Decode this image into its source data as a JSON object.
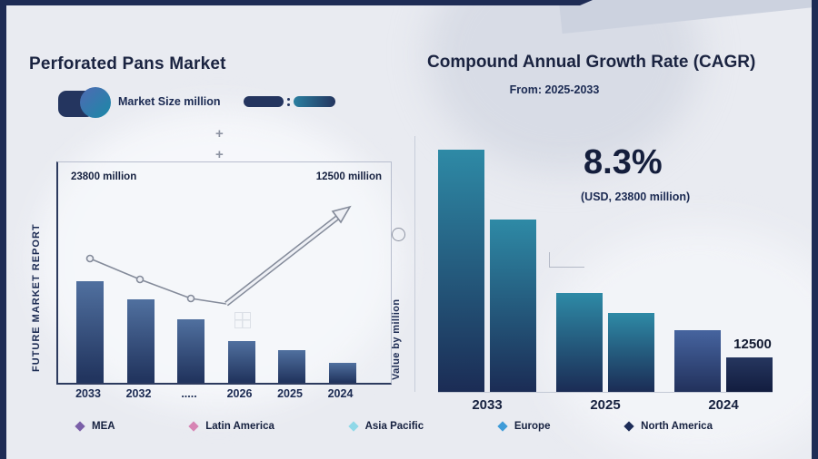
{
  "chart_data": [
    {
      "id": "market-size-bars",
      "type": "bar",
      "title": "Perforated Pans Market",
      "series_label": "Market Size million",
      "side_label": "FUTURE MARKET REPORT",
      "annotations": {
        "top_left": "23800 million",
        "top_right": "12500 million"
      },
      "categories": [
        "2033",
        "2032",
        ".....",
        "2026",
        "2025",
        "2024"
      ],
      "bar_heights_pct": [
        46,
        38,
        29,
        19,
        15,
        9
      ],
      "values_million_labeled": {
        "2033": 23800,
        "2024": 12500
      },
      "overlay": "marker line descending left-to-right with outlined arrow rising toward 12500 million"
    },
    {
      "id": "cagr-bars",
      "type": "bar",
      "title": "Compound Annual Growth Rate (CAGR)",
      "subtitle": "From: 2025-2033",
      "ylabel": "Value by million",
      "cagr_value": "8.3%",
      "cagr_note": "(USD, 23800 million)",
      "data_label": "12500",
      "categories": [
        "2033",
        "2025",
        "2024"
      ],
      "groups": [
        {
          "label": "2033",
          "bars": [
            {
              "height_pct": 98,
              "palette": "teal"
            },
            {
              "height_pct": 70,
              "palette": "teal"
            }
          ]
        },
        {
          "label": "2025",
          "bars": [
            {
              "height_pct": 40,
              "palette": "teal"
            },
            {
              "height_pct": 32,
              "palette": "teal"
            }
          ]
        },
        {
          "label": "2024",
          "bars": [
            {
              "height_pct": 25,
              "palette": "blue"
            },
            {
              "height_pct": 14,
              "palette": "navy"
            }
          ]
        }
      ]
    }
  ],
  "legend": {
    "items": [
      {
        "label": "MEA",
        "color": "#7a5fa8"
      },
      {
        "label": "Latin America",
        "color": "#d784b4"
      },
      {
        "label": "Asia Pacific",
        "color": "#8fd8e8"
      },
      {
        "label": "Europe",
        "color": "#3e9bd8"
      },
      {
        "label": "North America",
        "color": "#1d2c58"
      }
    ]
  },
  "colors": {
    "navy": "#1e2c55",
    "teal_bar_top": "#2e8aa6",
    "blue_bar_top": "#46649f",
    "background": "#e9ebf1"
  }
}
